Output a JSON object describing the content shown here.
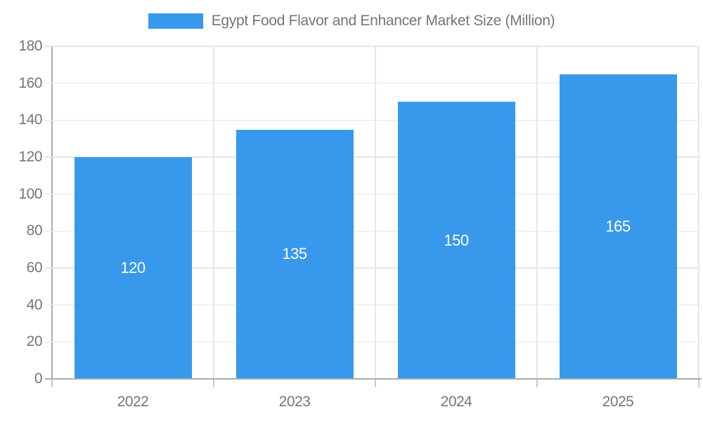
{
  "legend": {
    "label": "Egypt Food Flavor and Enhancer Market Size (Million)",
    "swatch_color": "#3898ec"
  },
  "chart_data": {
    "type": "bar",
    "title": "Egypt Food Flavor and Enhancer Market Size (Million)",
    "categories": [
      "2022",
      "2023",
      "2024",
      "2025"
    ],
    "values": [
      120,
      135,
      150,
      165
    ],
    "value_labels": [
      "120",
      "135",
      "150",
      "165"
    ],
    "xlabel": "",
    "ylabel": "",
    "ylim": [
      0,
      180
    ],
    "yticks": [
      0,
      20,
      40,
      60,
      80,
      100,
      120,
      140,
      160,
      180
    ],
    "ytick_labels": [
      "0",
      "20",
      "40",
      "60",
      "80",
      "100",
      "120",
      "140",
      "160",
      "180"
    ],
    "grid": true,
    "legend_position": "top",
    "bar_color": "#3898ec",
    "value_label_color": "#ffffff"
  },
  "colors": {
    "background": "#ffffff",
    "axis_line": "#ababab",
    "gridline": "#e6e6e6",
    "tick": "#c9c9c9",
    "axis_text": "#757575",
    "bar": "#3898ec",
    "bar_label": "#ffffff"
  }
}
